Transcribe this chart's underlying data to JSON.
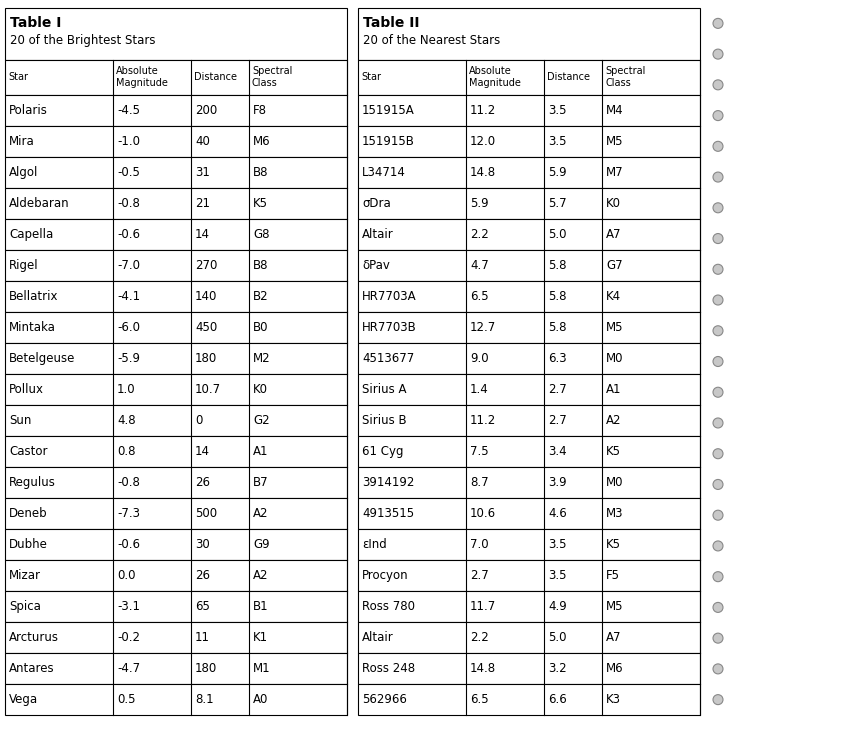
{
  "table1_title": "Table I",
  "table1_subtitle": "20 of the Brightest Stars",
  "table2_title": "Table II",
  "table2_subtitle": "20 of the Nearest Stars",
  "col_headers_line1": [
    "Star",
    "Absolute",
    "Distance",
    "Spectral"
  ],
  "col_headers_line2": [
    "",
    "Magnitude",
    "",
    "Class"
  ],
  "table1_data": [
    [
      "Polaris",
      "-4.5",
      "200",
      "F8"
    ],
    [
      "Mira",
      "-1.0",
      "40",
      "M6"
    ],
    [
      "Algol",
      "-0.5",
      "31",
      "B8"
    ],
    [
      "Aldebaran",
      "-0.8",
      "21",
      "K5"
    ],
    [
      "Capella",
      "-0.6",
      "14",
      "G8"
    ],
    [
      "Rigel",
      "-7.0",
      "270",
      "B8"
    ],
    [
      "Bellatrix",
      "-4.1",
      "140",
      "B2"
    ],
    [
      "Mintaka",
      "-6.0",
      "450",
      "B0"
    ],
    [
      "Betelgeuse",
      "-5.9",
      "180",
      "M2"
    ],
    [
      "Pollux",
      "1.0",
      "10.7",
      "K0"
    ],
    [
      "Sun",
      "4.8",
      "0",
      "G2"
    ],
    [
      "Castor",
      "0.8",
      "14",
      "A1"
    ],
    [
      "Regulus",
      "-0.8",
      "26",
      "B7"
    ],
    [
      "Deneb",
      "-7.3",
      "500",
      "A2"
    ],
    [
      "Dubhe",
      "-0.6",
      "30",
      "G9"
    ],
    [
      "Mizar",
      "0.0",
      "26",
      "A2"
    ],
    [
      "Spica",
      "-3.1",
      "65",
      "B1"
    ],
    [
      "Arcturus",
      "-0.2",
      "11",
      "K1"
    ],
    [
      "Antares",
      "-4.7",
      "180",
      "M1"
    ],
    [
      "Vega",
      "0.5",
      "8.1",
      "A0"
    ]
  ],
  "table2_data": [
    [
      "151915A",
      "11.2",
      "3.5",
      "M4"
    ],
    [
      "151915B",
      "12.0",
      "3.5",
      "M5"
    ],
    [
      "L34714",
      "14.8",
      "5.9",
      "M7"
    ],
    [
      "σDra",
      "5.9",
      "5.7",
      "K0"
    ],
    [
      "Altair",
      "2.2",
      "5.0",
      "A7"
    ],
    [
      "δPav",
      "4.7",
      "5.8",
      "G7"
    ],
    [
      "HR7703A",
      "6.5",
      "5.8",
      "K4"
    ],
    [
      "HR7703B",
      "12.7",
      "5.8",
      "M5"
    ],
    [
      "4513677",
      "9.0",
      "6.3",
      "M0"
    ],
    [
      "Sirius A",
      "1.4",
      "2.7",
      "A1"
    ],
    [
      "Sirius B",
      "11.2",
      "2.7",
      "A2"
    ],
    [
      "61 Cyg",
      "7.5",
      "3.4",
      "K5"
    ],
    [
      "3914192",
      "8.7",
      "3.9",
      "M0"
    ],
    [
      "4913515",
      "10.6",
      "4.6",
      "M3"
    ],
    [
      "εInd",
      "7.0",
      "3.5",
      "K5"
    ],
    [
      "Procyon",
      "2.7",
      "3.5",
      "F5"
    ],
    [
      "Ross 780",
      "11.7",
      "4.9",
      "M5"
    ],
    [
      "Altair",
      "2.2",
      "5.0",
      "A7"
    ],
    [
      "Ross 248",
      "14.8",
      "3.2",
      "M6"
    ],
    [
      "562966",
      "6.5",
      "6.6",
      "K3"
    ]
  ],
  "bg_color": "#ffffff",
  "line_color": "#000000",
  "title_fontsize": 10,
  "subtitle_fontsize": 8.5,
  "header_fontsize": 7,
  "data_fontsize": 8.5,
  "hole_color": "#c8c8c8",
  "hole_edge_color": "#888888"
}
